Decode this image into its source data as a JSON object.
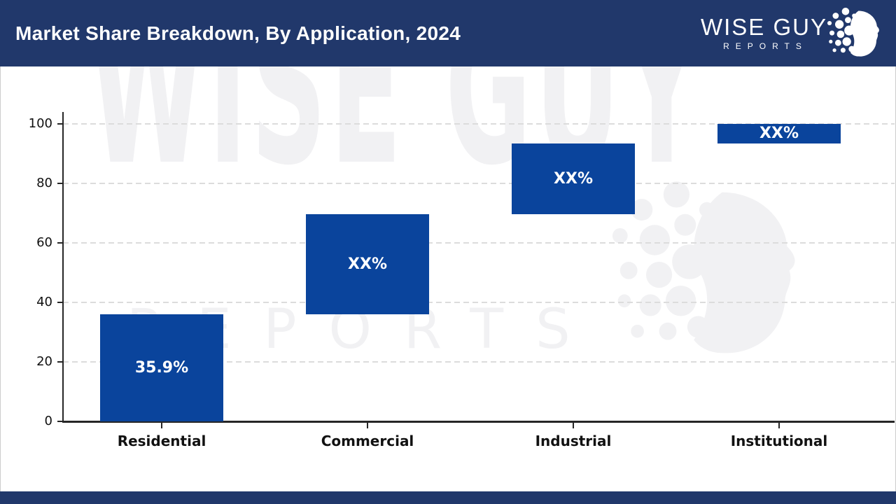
{
  "header": {
    "title": "Market Share Breakdown, By Application, 2024"
  },
  "logo": {
    "name": "WISE GUY",
    "subtitle": "REPORTS",
    "head_icon": "dotted-head-profile"
  },
  "watermark": {
    "line1": "WISE GUY",
    "line2": "REPORTS",
    "head_icon": "dotted-head-profile"
  },
  "colors": {
    "header_bg": "#21386b",
    "bar": "#0a449c",
    "grid": "#dcdcdc",
    "axis": "#262626",
    "text": "#111111",
    "watermark": "#f1f1f3",
    "page_border": "#cccccc",
    "bar_label": "#ffffff"
  },
  "chart_data": {
    "type": "bar",
    "variant": "waterfall-cumulative-percentage",
    "title": "Market Share Breakdown, By Application, 2024",
    "categories": [
      "Residential",
      "Commercial",
      "Industrial",
      "Institutional"
    ],
    "series": [
      {
        "name": "Market share (%)",
        "segments": [
          {
            "category": "Residential",
            "start": 0,
            "end": 35.9,
            "label": "35.9%"
          },
          {
            "category": "Commercial",
            "start": 35.9,
            "end": 69.6,
            "label": "XX%"
          },
          {
            "category": "Industrial",
            "start": 69.6,
            "end": 93.5,
            "label": "XX%"
          },
          {
            "category": "Institutional",
            "start": 93.5,
            "end": 100,
            "label": "XX%"
          }
        ]
      }
    ],
    "xlabel": "",
    "ylabel": "",
    "ylim": [
      0,
      100
    ],
    "yticks": [
      0,
      20,
      40,
      60,
      80,
      100
    ],
    "grid": "horizontal-dashed",
    "legend": "none",
    "bar_color": "#0a449c",
    "bar_label_color": "#ffffff"
  }
}
